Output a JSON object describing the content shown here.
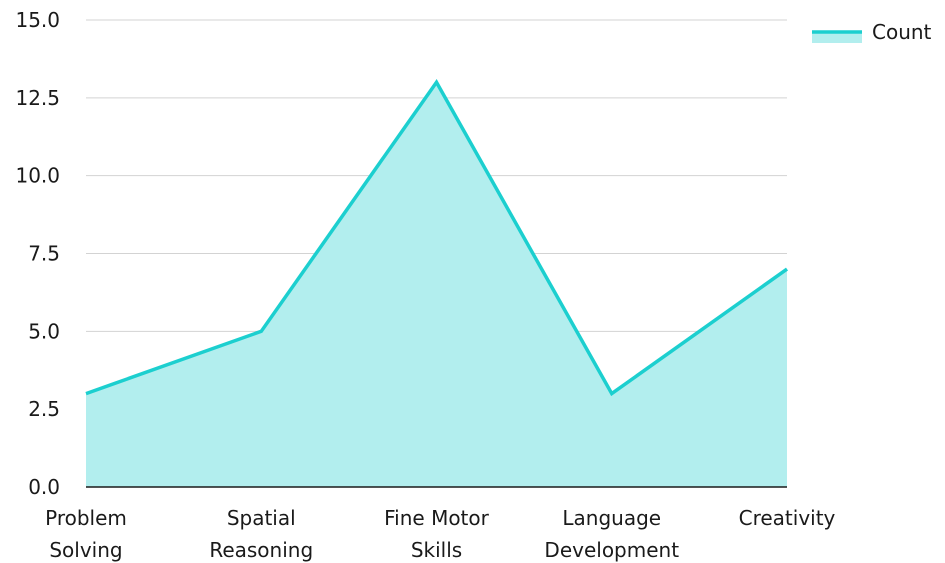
{
  "chart_data": {
    "type": "area",
    "categories": [
      [
        "Problem",
        "Solving"
      ],
      [
        "Spatial",
        "Reasoning"
      ],
      [
        "Fine Motor",
        "Skills"
      ],
      [
        "Language",
        "Development"
      ],
      [
        "Creativity"
      ]
    ],
    "series": [
      {
        "name": "Count",
        "values": [
          3,
          5,
          13,
          3,
          7
        ]
      }
    ],
    "ylim": [
      0,
      15
    ],
    "yticks": [
      "0.0",
      "2.5",
      "5.0",
      "7.5",
      "10.0",
      "12.5",
      "15.0"
    ],
    "ytick_values": [
      0,
      2.5,
      5,
      7.5,
      10,
      12.5,
      15
    ],
    "grid": true,
    "legend_position": "top-right",
    "colors": {
      "line": "#1ccfcf",
      "fill": "#b2eeee",
      "grid": "#d3d3d3",
      "axis": "#1a1a1a",
      "text": "#1a1a1a"
    }
  }
}
